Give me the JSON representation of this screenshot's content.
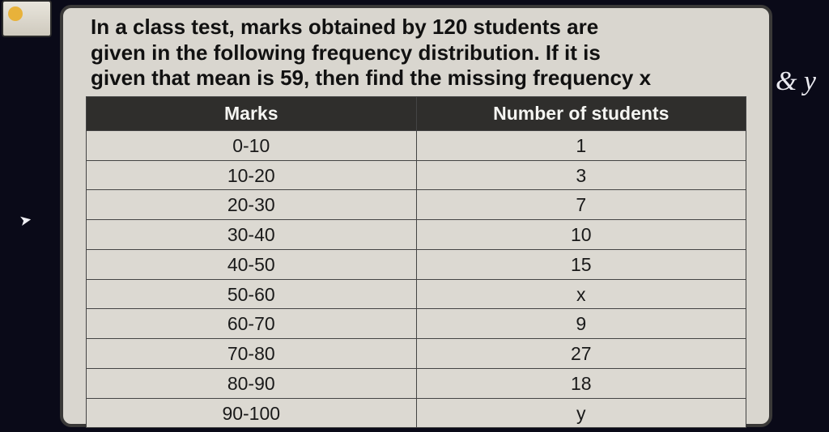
{
  "question": {
    "line1": "In a class test, marks obtained by 120 students are",
    "line2": "given in the following frequency distribution. If it is",
    "line3": "given that mean is 59, then find the missing frequency x",
    "annotation_after": "& y"
  },
  "table": {
    "headers": {
      "col1": "Marks",
      "col2": "Number of students"
    },
    "rows": [
      {
        "marks": "0-10",
        "students": "1"
      },
      {
        "marks": "10-20",
        "students": "3"
      },
      {
        "marks": "20-30",
        "students": "7"
      },
      {
        "marks": "30-40",
        "students": "10"
      },
      {
        "marks": "40-50",
        "students": "15"
      },
      {
        "marks": "50-60",
        "students": "x"
      },
      {
        "marks": "60-70",
        "students": "9"
      },
      {
        "marks": "70-80",
        "students": "27"
      },
      {
        "marks": "80-90",
        "students": "18"
      },
      {
        "marks": "90-100",
        "students": "y"
      }
    ]
  },
  "style": {
    "page_bg": "#0a0a18",
    "card_bg": "#d9d6cf",
    "card_border": "#3a3938",
    "header_bg": "#2f2e2c",
    "header_fg": "#f5f5f2",
    "cell_bg": "#dcd9d2",
    "cell_fg": "#1a1a1a",
    "cell_border": "#444444",
    "question_font": "Comic Sans MS",
    "table_font": "Verdana",
    "question_fontsize_pt": 20,
    "header_fontsize_pt": 17,
    "cell_fontsize_pt": 17,
    "col_widths_pct": [
      50,
      50
    ]
  }
}
